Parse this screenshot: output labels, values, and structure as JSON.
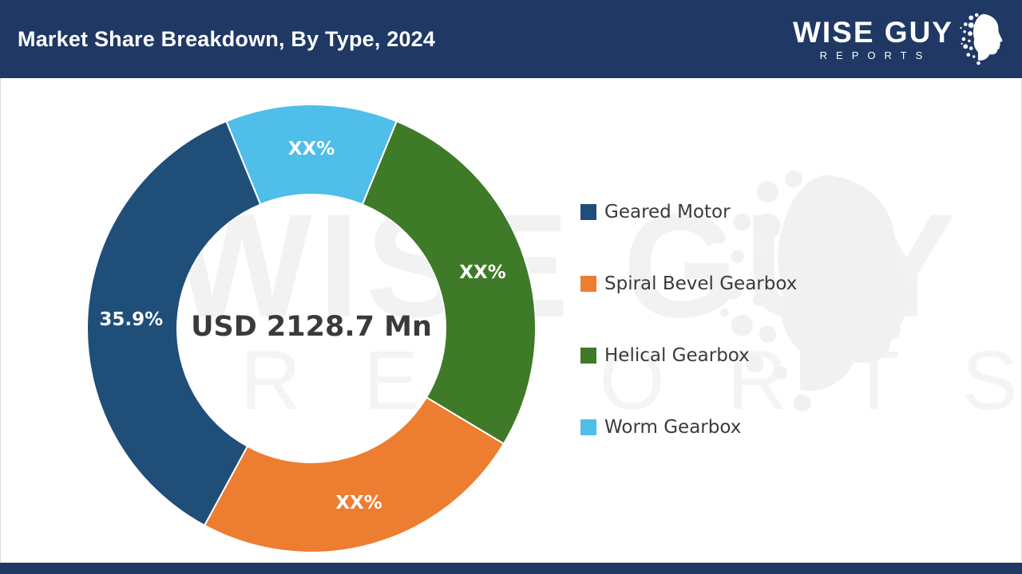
{
  "header": {
    "title": "Market Share Breakdown, By Type, 2024",
    "logo": {
      "primary": "WISE GUY",
      "secondary": "REPORTS"
    }
  },
  "chart_data": {
    "type": "pie",
    "subtype": "donut",
    "title": "Market Share Breakdown, By Type, 2024",
    "center_label": "USD 2128.7 Mn",
    "start_angle_deg": -22.3,
    "direction": "clockwise",
    "legend_position": "right",
    "segments": [
      {
        "name": "Worm Gearbox",
        "display_label": "XX%",
        "angle_pct": 12.4,
        "color": "#4FBEE8"
      },
      {
        "name": "Helical Gearbox",
        "display_label": "XX%",
        "angle_pct": 27.4,
        "color": "#3E7A28"
      },
      {
        "name": "Spiral Bevel Gearbox",
        "display_label": "XX%",
        "angle_pct": 24.3,
        "color": "#ED7D31"
      },
      {
        "name": "Geared Motor",
        "display_label": "35.9%",
        "angle_pct": 35.9,
        "color": "#1F4E79"
      }
    ]
  },
  "legend": {
    "items": [
      {
        "label": "Geared Motor",
        "color": "#1F4E79"
      },
      {
        "label": "Spiral Bevel Gearbox",
        "color": "#ED7D31"
      },
      {
        "label": "Helical Gearbox",
        "color": "#3E7A28"
      },
      {
        "label": "Worm Gearbox",
        "color": "#4FBEE8"
      }
    ]
  },
  "watermark": {
    "primary": "WISE GUY",
    "secondary": "REPORTS"
  },
  "colors": {
    "header_bg": "#1F3864",
    "footer_bg": "#1F3864",
    "center_text": "#3A3A3A",
    "legend_text": "#3A3A3A",
    "watermark_text": "#F2F2F2"
  }
}
